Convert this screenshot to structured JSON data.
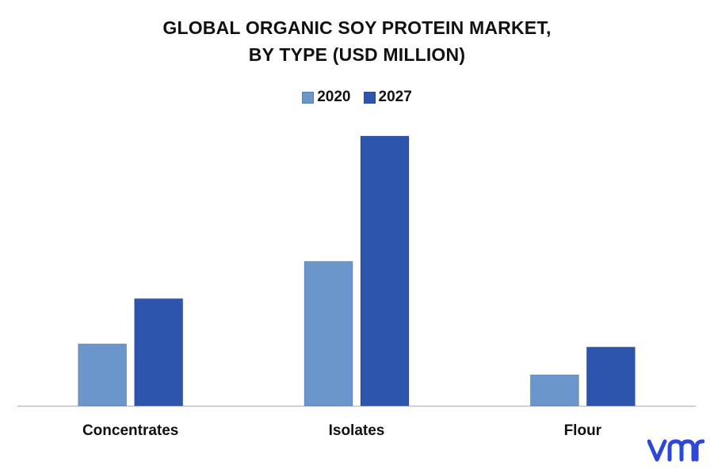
{
  "title_line1": "GLOBAL ORGANIC SOY PROTEIN MARKET,",
  "title_line2": "BY TYPE (USD MILLION)",
  "brand": "vmr",
  "colors": {
    "series_2020": "#6a96cc",
    "series_2027": "#2e55ad",
    "axis": "#bfbfbf",
    "logo": "#2f47d6"
  },
  "chart_data": {
    "type": "bar",
    "categories": [
      "Concentrates",
      "Isolates",
      "Flour"
    ],
    "series": [
      {
        "name": "2020",
        "values": [
          78,
          182,
          39
        ]
      },
      {
        "name": "2027",
        "values": [
          135,
          340,
          74
        ]
      }
    ],
    "ylim": [
      0,
      350
    ],
    "grid": false,
    "legend_position": "top-center"
  }
}
